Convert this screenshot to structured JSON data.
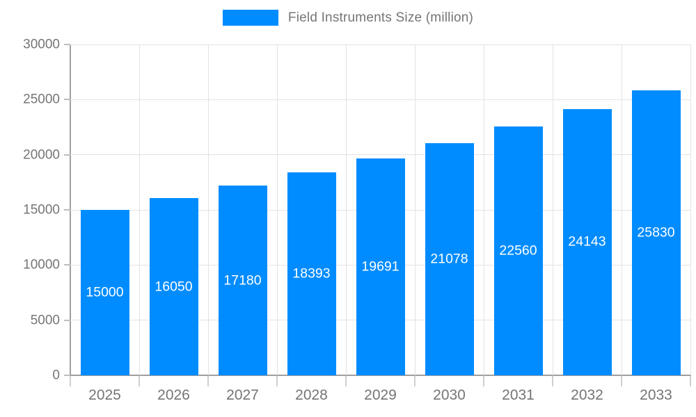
{
  "legend": {
    "label": "Field Instruments Size (million)",
    "swatch_color": "#008CFF"
  },
  "chart_data": {
    "type": "bar",
    "title": "Field Instruments Size (million)",
    "categories": [
      "2025",
      "2026",
      "2027",
      "2028",
      "2029",
      "2030",
      "2031",
      "2032",
      "2033"
    ],
    "values": [
      15000,
      16050,
      17180,
      18393,
      19691,
      21078,
      22560,
      24143,
      25830
    ],
    "series": [
      {
        "name": "Field Instruments Size (million)",
        "values": [
          15000,
          16050,
          17180,
          18393,
          19691,
          21078,
          22560,
          24143,
          25830
        ]
      }
    ],
    "xlabel": "",
    "ylabel": "",
    "ylim": [
      0,
      30000
    ],
    "ytick_step": 5000,
    "ytick_labels": [
      "0",
      "5000",
      "10000",
      "15000",
      "20000",
      "25000",
      "30000"
    ],
    "grid": true,
    "legend_position": "top",
    "bar_color": "#008CFF",
    "bar_label_color": "#ffffff",
    "axis_text_color": "#757575",
    "gridline_color": "#e3e3e3",
    "axis_line_color": "#9e9e9e"
  }
}
